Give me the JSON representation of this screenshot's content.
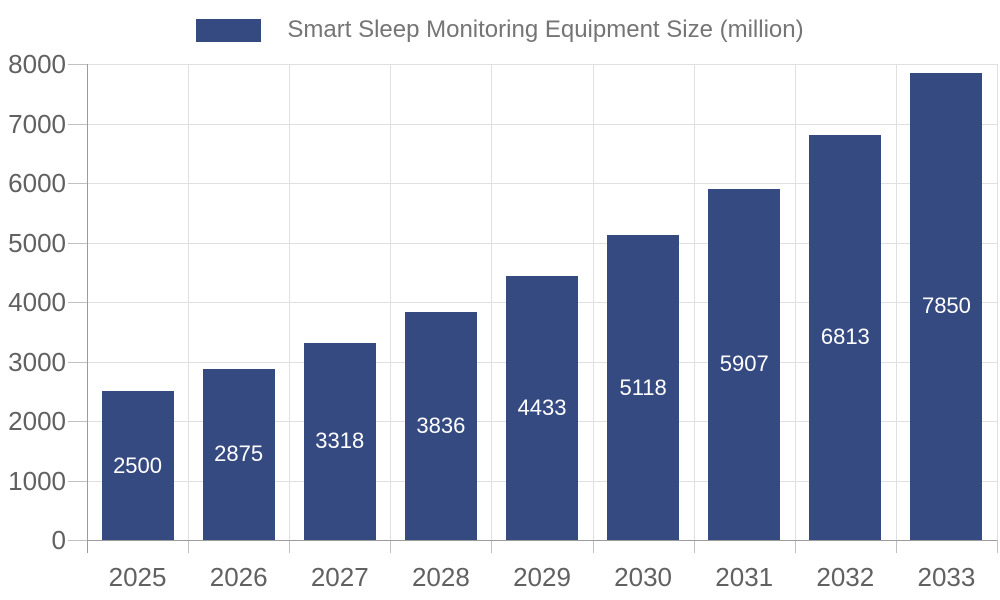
{
  "legend": {
    "swatch_color": "#364a82",
    "label": "Smart Sleep Monitoring Equipment Size (million)"
  },
  "chart_data": {
    "type": "bar",
    "title": "Smart Sleep Monitoring Equipment Size (million)",
    "categories": [
      "2025",
      "2026",
      "2027",
      "2028",
      "2029",
      "2030",
      "2031",
      "2032",
      "2033"
    ],
    "values": [
      2500,
      2875,
      3318,
      3836,
      4433,
      5118,
      5907,
      6813,
      7850
    ],
    "series_name": "Smart Sleep Monitoring Equipment Size (million)",
    "xlabel": "",
    "ylabel": "",
    "ylim": [
      0,
      8000
    ],
    "ytick_step": 1000,
    "yticks": [
      0,
      1000,
      2000,
      3000,
      4000,
      5000,
      6000,
      7000,
      8000
    ],
    "grid": true,
    "legend_position": "top",
    "bar_color": "#364a82",
    "bar_label_color": "#ffffff",
    "show_bar_labels": true
  },
  "colors": {
    "background": "#ffffff",
    "grid": "#e0e0e0",
    "axis": "#9c9c9c",
    "tick": "#c0c0c0",
    "tick_label": "#616161",
    "legend_text": "#757575"
  }
}
